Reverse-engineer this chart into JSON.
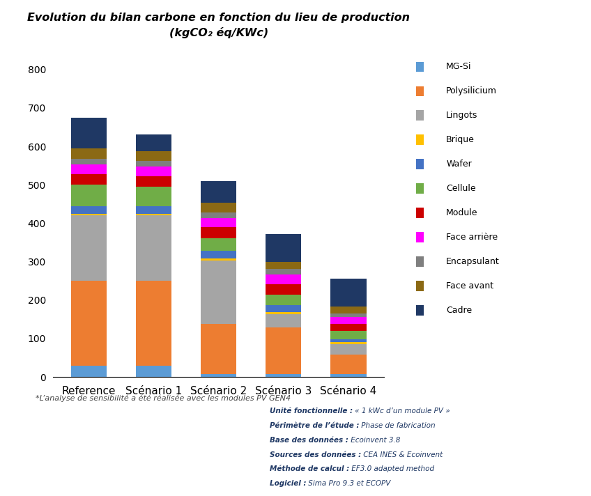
{
  "title_line1": "Evolution du bilan carbone en fonction du lieu de production",
  "title_line2": "(kgCO₂ éq/KWc)",
  "categories": [
    "Reference",
    "Scénario 1",
    "Scénario 2",
    "Scénario 3",
    "Scénario 4"
  ],
  "layers": [
    {
      "name": "MG-Si",
      "color": "#5B9BD5",
      "values": [
        30,
        30,
        8,
        8,
        8
      ]
    },
    {
      "name": "Polysilicium",
      "color": "#ED7D31",
      "values": [
        220,
        220,
        130,
        120,
        50
      ]
    },
    {
      "name": "Lingots",
      "color": "#A5A5A5",
      "values": [
        170,
        170,
        165,
        35,
        28
      ]
    },
    {
      "name": "Brique",
      "color": "#FFC000",
      "values": [
        5,
        5,
        5,
        5,
        5
      ]
    },
    {
      "name": "Wafer",
      "color": "#4472C4",
      "values": [
        20,
        20,
        20,
        18,
        7
      ]
    },
    {
      "name": "Cellule",
      "color": "#70AD47",
      "values": [
        55,
        50,
        33,
        28,
        22
      ]
    },
    {
      "name": "Module",
      "color": "#CC0000",
      "values": [
        28,
        28,
        28,
        28,
        18
      ]
    },
    {
      "name": "Face arrière",
      "color": "#FF00FF",
      "values": [
        25,
        25,
        25,
        25,
        18
      ]
    },
    {
      "name": "Encapsulant",
      "color": "#7F7F7F",
      "values": [
        14,
        14,
        14,
        14,
        10
      ]
    },
    {
      "name": "Face avant",
      "color": "#8B6914",
      "values": [
        28,
        25,
        25,
        18,
        18
      ]
    },
    {
      "name": "Cadre",
      "color": "#1F3864",
      "values": [
        80,
        43,
        57,
        72,
        71
      ]
    }
  ],
  "ylim": [
    0,
    800
  ],
  "yticks": [
    0,
    100,
    200,
    300,
    400,
    500,
    600,
    700,
    800
  ],
  "footnote": "*L’analyse de sensibilité a été réalisée avec les modules PV GEN4",
  "box_lines": [
    [
      "Unité fonctionnelle :",
      " « 1 kWc d’un module PV »"
    ],
    [
      "Périmètre de l’étude :",
      " Phase de fabrication"
    ],
    [
      "Base des données :",
      " Ecoinvent 3.8"
    ],
    [
      "Sources des données :",
      " CEA INES & Ecoinvent"
    ],
    [
      "Méthode de calcul :",
      " EF3.0 adapted method"
    ],
    [
      "Logiciel :",
      " Sima Pro 9.3 et ECOPV"
    ]
  ],
  "background_color": "#FFFFFF",
  "box_bg_color": "#C9DDEF",
  "text_color": "#1F3864"
}
